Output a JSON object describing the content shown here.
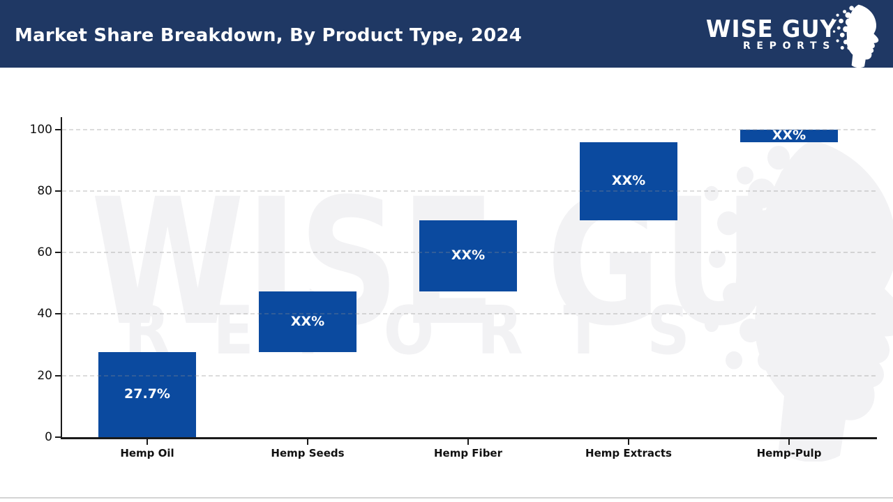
{
  "header": {
    "title": "Market Share Breakdown, By Product Type, 2024",
    "logo": {
      "line1": "WISE GUY",
      "line2": "REPORTS"
    }
  },
  "watermark": {
    "line1": "WISE GUY",
    "line2": "REPORTS"
  },
  "theme": {
    "header_bg": "#1f3864",
    "bar_color": "#0b4a9f",
    "axis_color": "#1a1a1a",
    "grid_color": "#d9d9d9",
    "watermark_color": "#f2f2f4",
    "label_color": "#ffffff"
  },
  "chart_data": {
    "type": "bar",
    "subtype": "waterfall",
    "title": "Market Share Breakdown, By Product Type, 2024",
    "categories": [
      "Hemp Oil",
      "Hemp Seeds",
      "Hemp Fiber",
      "Hemp Extracts",
      "Hemp-Pulp"
    ],
    "segments": [
      {
        "category": "Hemp Oil",
        "label": "27.7%",
        "start": 0,
        "end": 27.7
      },
      {
        "category": "Hemp Seeds",
        "label": "XX%",
        "start": 27.7,
        "end": 47.4
      },
      {
        "category": "Hemp Fiber",
        "label": "XX%",
        "start": 47.4,
        "end": 70.5
      },
      {
        "category": "Hemp Extracts",
        "label": "XX%",
        "start": 70.5,
        "end": 95.9
      },
      {
        "category": "Hemp-Pulp",
        "label": "XX%",
        "start": 95.9,
        "end": 100
      }
    ],
    "xlabel": "",
    "ylabel": "",
    "yticks": [
      0,
      20,
      40,
      60,
      80,
      100
    ],
    "ylim": [
      0,
      100
    ],
    "grid": "dashed-horizontal",
    "legend": "none"
  }
}
